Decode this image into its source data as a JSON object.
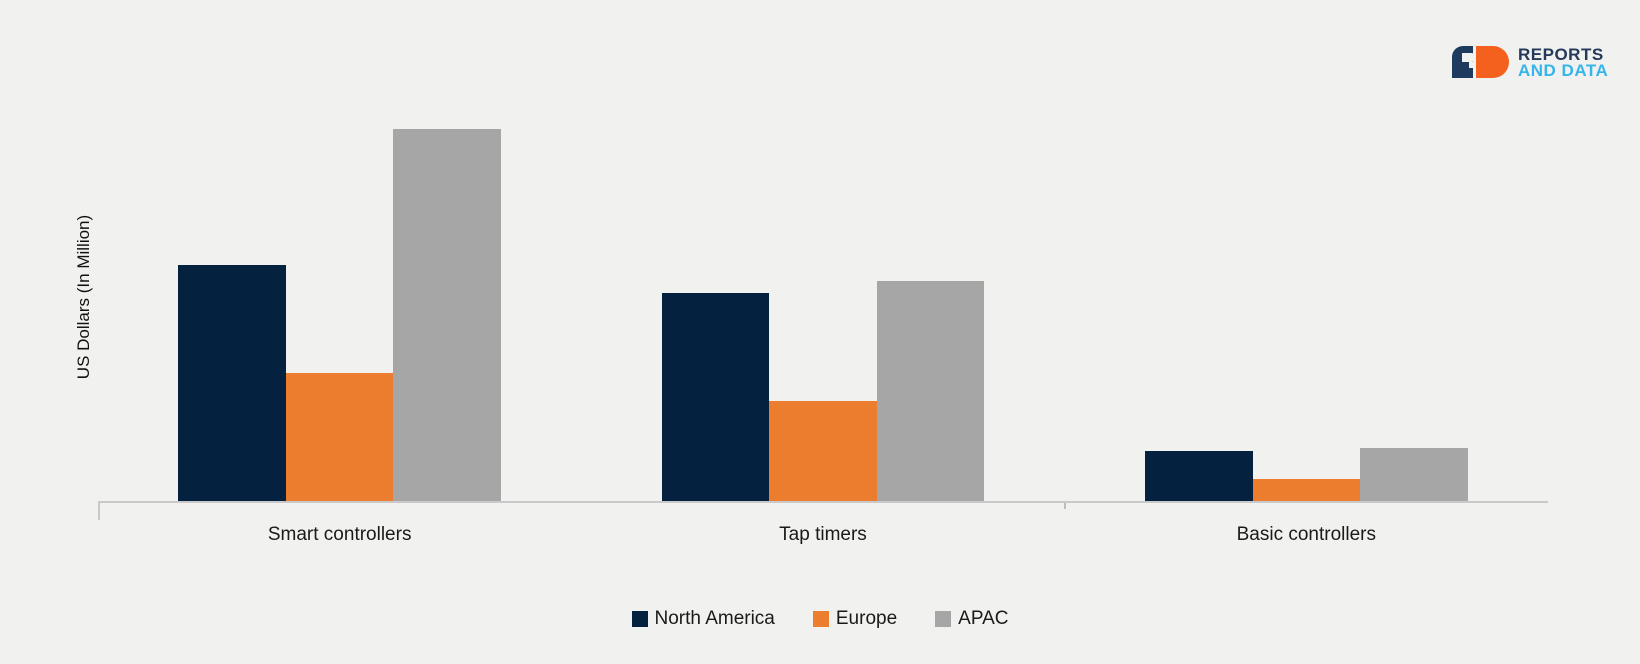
{
  "logo": {
    "mark_r": "R",
    "mark_d": "D",
    "line1": "REPORTS",
    "line2": "AND DATA",
    "colors": {
      "navy": "#1e3a5f",
      "orange": "#f4601e",
      "cyan": "#35b5ea"
    }
  },
  "chart_data": {
    "type": "bar",
    "title": "",
    "categories": [
      "Smart controllers",
      "Tap timers",
      "Basic controllers"
    ],
    "series": [
      {
        "name": "North America",
        "color": "#04223f",
        "values": [
          59,
          52,
          12.5
        ]
      },
      {
        "name": "Europe",
        "color": "#ec7d2f",
        "values": [
          32,
          25,
          5.5
        ]
      },
      {
        "name": "APAC",
        "color": "#a6a6a6",
        "values": [
          93,
          55,
          13.2
        ]
      }
    ],
    "xlabel": "",
    "ylabel": "US Dollars  (In Million)",
    "ylim": [
      0,
      100
    ],
    "grid": false,
    "y_tick_labels_visible": false,
    "legend_position": "bottom-center",
    "axis_color": "#c9c9c9",
    "background_color": "#f1f1ef"
  }
}
